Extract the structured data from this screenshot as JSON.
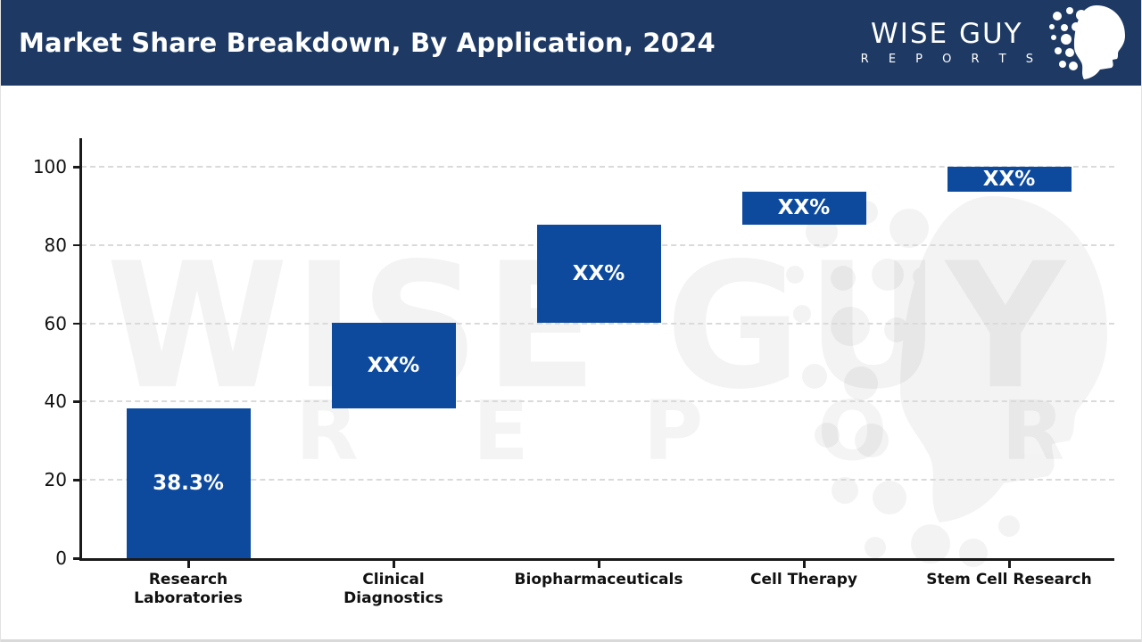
{
  "header": {
    "title": "Market Share Breakdown, By Application, 2024",
    "logo": {
      "line1": "WISE GUY",
      "line2": "R E P O R T S"
    }
  },
  "watermark": {
    "line1": "WISE GUY",
    "line2": "R E P O R T S"
  },
  "chart_data": {
    "type": "bar",
    "variant": "waterfall",
    "title": "Market Share Breakdown, By Application, 2024",
    "categories": [
      "Research Laboratories",
      "Clinical Diagnostics",
      "Biopharmaceuticals",
      "Cell Therapy",
      "Stem Cell Research"
    ],
    "x_label_lines": [
      [
        "Research",
        "Laboratories"
      ],
      [
        "Clinical",
        "Diagnostics"
      ],
      [
        "Biopharmaceuticals"
      ],
      [
        "Cell Therapy"
      ],
      [
        "Stem Cell Research"
      ]
    ],
    "segments": [
      {
        "category": "Research Laboratories",
        "start": 0,
        "end": 38.3,
        "label": "38.3%"
      },
      {
        "category": "Clinical Diagnostics",
        "start": 38.3,
        "end": 60.1,
        "label": "XX%"
      },
      {
        "category": "Biopharmaceuticals",
        "start": 60.1,
        "end": 85.2,
        "label": "XX%"
      },
      {
        "category": "Cell Therapy",
        "start": 85.2,
        "end": 93.7,
        "label": "XX%"
      },
      {
        "category": "Stem Cell Research",
        "start": 93.7,
        "end": 100,
        "label": "XX%"
      }
    ],
    "yticks": [
      0,
      20,
      40,
      60,
      80,
      100
    ],
    "ylim": [
      0,
      107
    ],
    "xlabel": "",
    "ylabel": "",
    "legend": "none",
    "grid": "horizontal-dashed",
    "bar_color": "#0d4a9e",
    "label_color": "#ffffff",
    "header_color": "#1e3a64"
  }
}
